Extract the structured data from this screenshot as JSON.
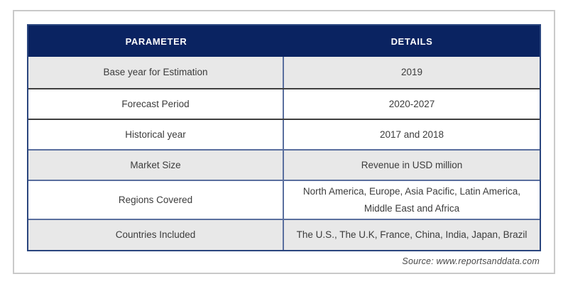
{
  "colors": {
    "header_bg": "#0a2361",
    "header_text": "#ffffff",
    "row_gray": "#e8e8e8",
    "row_white": "#ffffff",
    "border_blue": "#5a6f9e",
    "border_dark": "#3f3f3f",
    "table_outline": "#2a457e",
    "card_border": "#c9c9c9",
    "body_text": "#3c3c3c"
  },
  "table": {
    "headers": [
      "PARAMETER",
      "DETAILS"
    ],
    "rows": [
      {
        "parameter": "Base year for Estimation",
        "details": "2019"
      },
      {
        "parameter": "Forecast Period",
        "details": "2020-2027"
      },
      {
        "parameter": "Historical year",
        "details": "2017 and 2018"
      },
      {
        "parameter": "Market Size",
        "details": "Revenue in USD million"
      },
      {
        "parameter": "Regions Covered",
        "details": "North America, Europe, Asia Pacific, Latin America, Middle East and Africa"
      },
      {
        "parameter": "Countries Included",
        "details": "The U.S., The  U.K, France, China, India, Japan, Brazil"
      }
    ]
  },
  "source": {
    "label": "Source: www.reportsanddata.com"
  }
}
